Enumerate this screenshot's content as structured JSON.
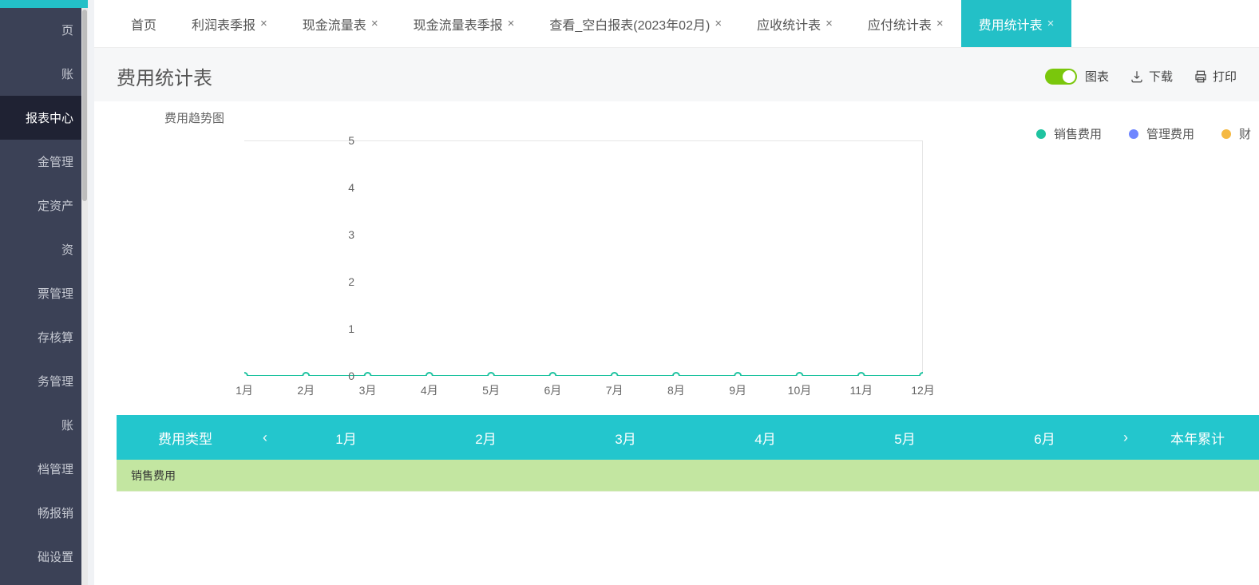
{
  "colors": {
    "accent": "#23c0c7",
    "sidebar_bg": "#3b4156",
    "sidebar_active_bg": "#1f2233",
    "toggle_on": "#7ac70c",
    "table_head": "#23c6cd",
    "row_green": "#c3e6a1"
  },
  "sidebar": {
    "items": [
      {
        "label": "页"
      },
      {
        "label": "账"
      },
      {
        "label": "报表中心",
        "active": true
      },
      {
        "label": "金管理"
      },
      {
        "label": "定资产"
      },
      {
        "label": "资"
      },
      {
        "label": "票管理"
      },
      {
        "label": "存核算"
      },
      {
        "label": "务管理"
      },
      {
        "label": "账"
      },
      {
        "label": "档管理"
      },
      {
        "label": "畅报销"
      },
      {
        "label": "础设置"
      }
    ]
  },
  "tabs": [
    {
      "label": "首页",
      "closable": false
    },
    {
      "label": "利润表季报",
      "closable": true
    },
    {
      "label": "现金流量表",
      "closable": true
    },
    {
      "label": "现金流量表季报",
      "closable": true
    },
    {
      "label": "查看_空白报表(2023年02月)",
      "closable": true
    },
    {
      "label": "应收统计表",
      "closable": true
    },
    {
      "label": "应付统计表",
      "closable": true
    },
    {
      "label": "费用统计表",
      "closable": true,
      "active": true
    }
  ],
  "page": {
    "title": "费用统计表",
    "toggle_label": "图表",
    "download_label": "下载",
    "print_label": "打印"
  },
  "chart": {
    "title": "费用趋势图",
    "type": "line",
    "x_categories": [
      "1月",
      "2月",
      "3月",
      "4月",
      "5月",
      "6月",
      "7月",
      "8月",
      "9月",
      "10月",
      "11月",
      "12月"
    ],
    "y_ticks": [
      0,
      1,
      2,
      3,
      4,
      5
    ],
    "ylim": [
      0,
      5
    ],
    "series": [
      {
        "name": "销售费用",
        "color": "#1fc3a0",
        "values": [
          0,
          0,
          0,
          0,
          0,
          0,
          0,
          0,
          0,
          0,
          0,
          0
        ]
      }
    ],
    "legend": [
      {
        "name": "销售费用",
        "color": "#1fc3a0"
      },
      {
        "name": "管理费用",
        "color": "#6f86ff"
      },
      {
        "name": "财",
        "color": "#f5b942"
      }
    ],
    "background_color": "#ffffff",
    "grid_color": "#e6e6e6",
    "marker": {
      "shape": "circle",
      "size": 4,
      "fill": "#ffffff",
      "stroke_width": 2
    },
    "line_width": 2,
    "label_fontsize": 14,
    "label_color": "#666"
  },
  "table": {
    "type_header": "费用类型",
    "months": [
      "1月",
      "2月",
      "3月",
      "4月",
      "5月",
      "6月"
    ],
    "total_header": "本年累计",
    "rows": [
      {
        "type": "销售费用",
        "cells": [
          "",
          "",
          "",
          "",
          "",
          ""
        ],
        "total": ""
      }
    ]
  }
}
